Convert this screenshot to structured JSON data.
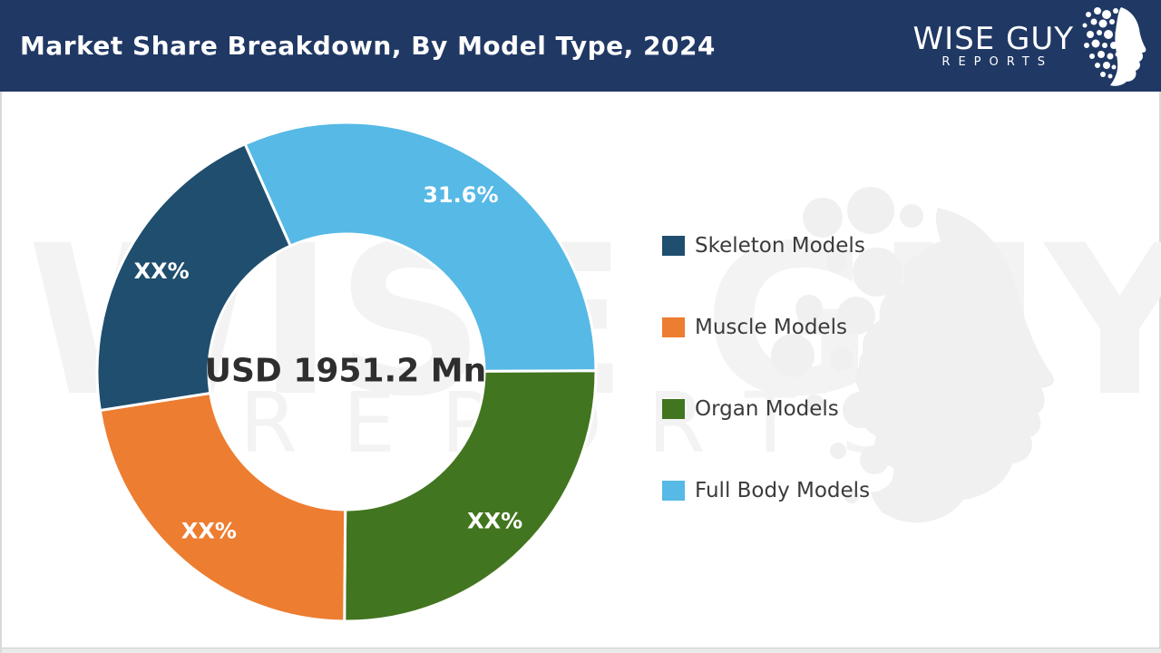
{
  "header": {
    "title": "Market Share Breakdown, By Model Type, 2024",
    "bg_color": "#203864",
    "logo": {
      "line1": "WISE GUY",
      "line2": "REPORTS"
    }
  },
  "watermark": {
    "line1": "WISE GUY",
    "line2": "REPORTS"
  },
  "chart_data": {
    "type": "pie",
    "subtype": "donut",
    "title": "Market Share Breakdown, By Model Type, 2024",
    "center_label": "USD 1951.2 Mn",
    "units": "percent share of USD 1951.2 Mn",
    "start_angle_deg": -24,
    "direction": "clockwise",
    "legend_position": "right",
    "labels_inside_slices": true,
    "slices": [
      {
        "name": "Full Body Models",
        "display": "31.6%",
        "value": 31.6,
        "color": "#56b9e6"
      },
      {
        "name": "Organ Models",
        "display": "XX%",
        "value": 25.2,
        "color": "#42751f"
      },
      {
        "name": "Muscle Models",
        "display": "XX%",
        "value": 22.4,
        "color": "#ed7d31"
      },
      {
        "name": "Skeleton Models",
        "display": "XX%",
        "value": 20.8,
        "color": "#1f4e6e"
      }
    ],
    "legend": [
      {
        "label": "Skeleton Models",
        "color": "#1f4e6e"
      },
      {
        "label": "Muscle Models",
        "color": "#ed7d31"
      },
      {
        "label": "Organ Models",
        "color": "#42751f"
      },
      {
        "label": "Full Body Models",
        "color": "#56b9e6"
      }
    ]
  }
}
